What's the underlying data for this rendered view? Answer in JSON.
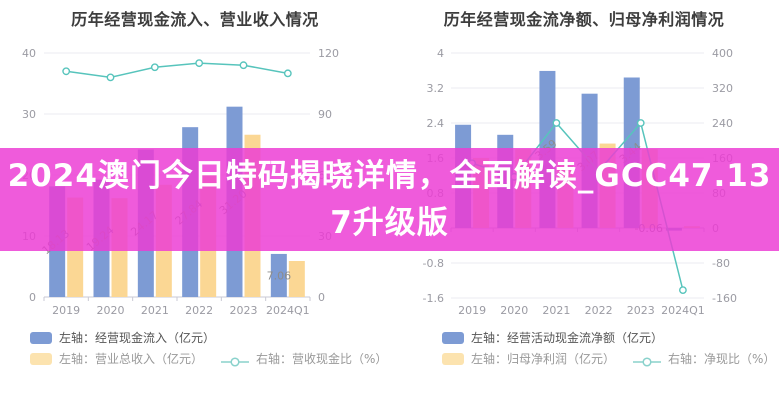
{
  "banner": {
    "text": "2024澳门今日特码揭晓详情，全面解读_GCC47.137升级版",
    "line1": "2024澳门今日特码揭晓详情，全面解读_GCC47.13",
    "line2": "7升级版",
    "bg_color": "#ec3cd4",
    "text_color": "#ffffff"
  },
  "chart_data": [
    {
      "type": "combo_bar_line",
      "title": "历年经营现金流入、营业收入情况",
      "categories": [
        "2019",
        "2020",
        "2021",
        "2022",
        "2023",
        "2024Q1"
      ],
      "left_axis": {
        "min": 0,
        "max": 40,
        "tick_values": [
          40,
          30,
          20,
          10,
          0
        ],
        "tick_labels": [
          "40",
          "30",
          "20",
          "10",
          "0"
        ]
      },
      "right_axis": {
        "min": 0,
        "max": 120,
        "tick_labels": [
          "120",
          "90",
          "60",
          "30",
          "0"
        ]
      },
      "grid": true,
      "legend_position": "bottom",
      "series": [
        {
          "name": "左轴：经营现金流入（亿元）",
          "kind": "bar",
          "axis": "left",
          "color": "#7d9bd4",
          "legend_color": "#7d9bd4",
          "values": [
            18.13,
            19.24,
            24.17,
            27.84,
            31.2,
            7.06
          ],
          "labels": [
            "18.13",
            "19.24",
            "24.17",
            "27.84",
            "31.20",
            "7.06"
          ]
        },
        {
          "name": "左轴：营业总收入（亿元）",
          "kind": "bar",
          "axis": "left",
          "color": "#fbd794",
          "legend_color": "#fce3af",
          "values": [
            16.3,
            16.2,
            18.4,
            20.5,
            26.6,
            5.9
          ]
        },
        {
          "name": "右轴：营收现金比（%）",
          "kind": "line",
          "axis": "right",
          "color": "#57c4bc",
          "legend_color": "#8ad2cc",
          "values": [
            111,
            108,
            113,
            115,
            114,
            110
          ]
        }
      ]
    },
    {
      "type": "combo_bar_line",
      "title": "历年经营现金流净额、归母净利润情况",
      "categories": [
        "2019",
        "2020",
        "2021",
        "2022",
        "2023",
        "2024Q1"
      ],
      "left_axis": {
        "min": -1.6,
        "max": 4,
        "tick_values": [
          4,
          3.2,
          2.4,
          1.6,
          0.8,
          0,
          -0.8,
          -1.6
        ],
        "tick_labels": [
          "4",
          "3.2",
          "2.4",
          "1.6",
          "0.8",
          "0",
          "-0.8",
          "-1.6"
        ]
      },
      "right_axis": {
        "min": -160,
        "max": 400,
        "tick_labels": [
          "400",
          "320",
          "240",
          "160",
          "80",
          "0",
          "-80",
          "-160"
        ]
      },
      "grid": true,
      "legend_position": "bottom",
      "series": [
        {
          "name": "左轴：经营活动现金流净额（亿元）",
          "kind": "bar",
          "axis": "left",
          "color": "#7d9bd4",
          "legend_color": "#7d9bd4",
          "values": [
            2.36,
            2.13,
            3.59,
            3.07,
            3.44,
            -0.06
          ],
          "labels": [
            "",
            "",
            "3.59",
            "3.07",
            "3.44",
            "-0.06"
          ]
        },
        {
          "name": "左轴：归母净利润（亿元）",
          "kind": "bar",
          "axis": "left",
          "color": "#fbd794",
          "legend_color": "#fce3af",
          "values": [
            1.6,
            1.8,
            1.5,
            1.93,
            1.8,
            0.04
          ]
        },
        {
          "name": "右轴：净现比（%）",
          "kind": "line",
          "axis": "right",
          "color": "#57c4bc",
          "legend_color": "#8ad2cc",
          "values": [
            148,
            117,
            240,
            130,
            240,
            -142
          ]
        }
      ]
    }
  ]
}
